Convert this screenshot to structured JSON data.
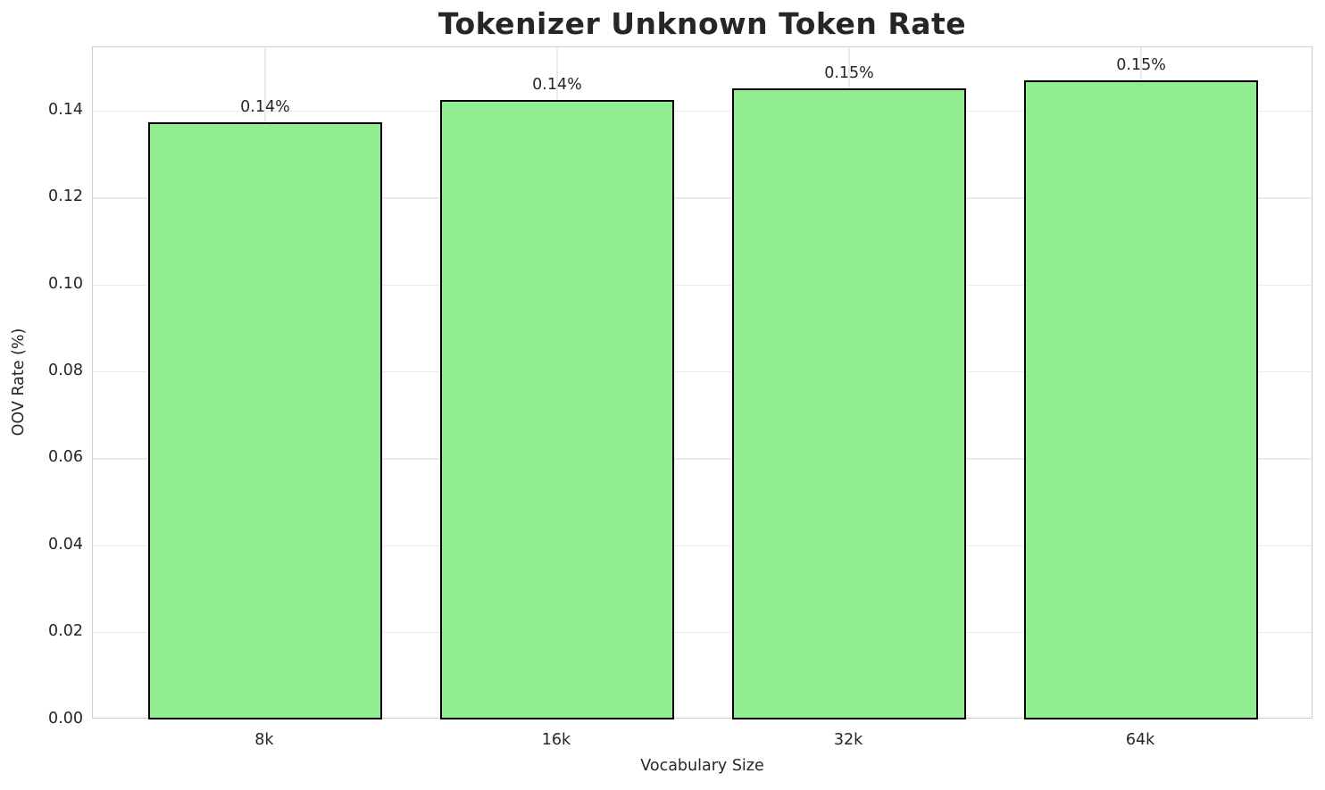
{
  "chart_data": {
    "type": "bar",
    "title": "Tokenizer Unknown Token Rate",
    "xlabel": "Vocabulary Size",
    "ylabel": "OOV Rate (%)",
    "categories": [
      "8k",
      "16k",
      "32k",
      "64k"
    ],
    "values": [
      0.1375,
      0.1425,
      0.1453,
      0.1472
    ],
    "bar_labels": [
      "0.14%",
      "0.14%",
      "0.15%",
      "0.15%"
    ],
    "ylim": [
      0,
      0.1547
    ],
    "yticks": [
      "0.00",
      "0.02",
      "0.04",
      "0.06",
      "0.08",
      "0.10",
      "0.12",
      "0.14"
    ],
    "grid": true,
    "legend": false,
    "colors": {
      "bar_fill": "#90EE90",
      "bar_edge": "#000000",
      "grid": "#EBEBEB",
      "spine": "#CDCDCD",
      "text": "#262626",
      "background": "#FFFFFF"
    }
  }
}
